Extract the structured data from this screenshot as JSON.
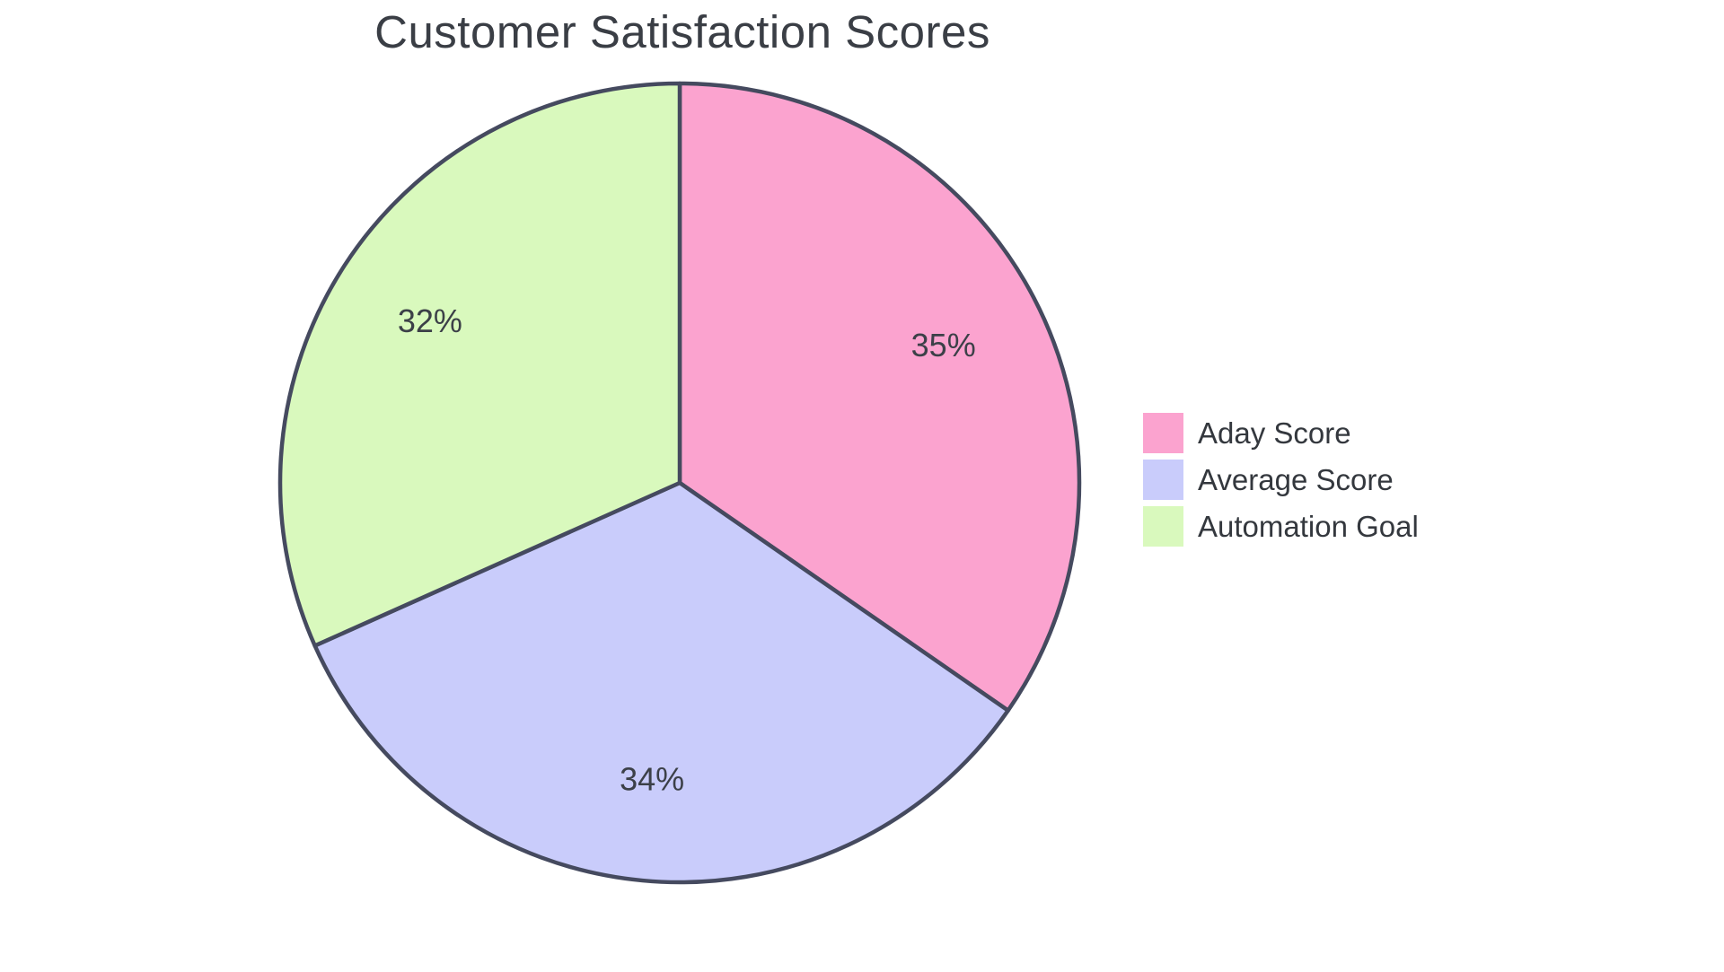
{
  "page": {
    "background": "#FFFFFF"
  },
  "chart_data": {
    "type": "pie",
    "title": "Customer Satisfaction Scores",
    "categories": [
      "Aday Score",
      "Average Score",
      "Automation Goal"
    ],
    "values": [
      35,
      34,
      32
    ],
    "slice_labels": [
      "35%",
      "34%",
      "32%"
    ],
    "colors": [
      "#FBA3CF",
      "#C9CCFB",
      "#D9F9BD"
    ],
    "slice_border_color": "#454A5F",
    "label_text_color": "#3C4048",
    "title_color": "#3A3E45",
    "legend_text_color": "#34383E",
    "start_angle": "top",
    "direction": "clockwise",
    "legend_position": "right",
    "labels_inside": true
  }
}
